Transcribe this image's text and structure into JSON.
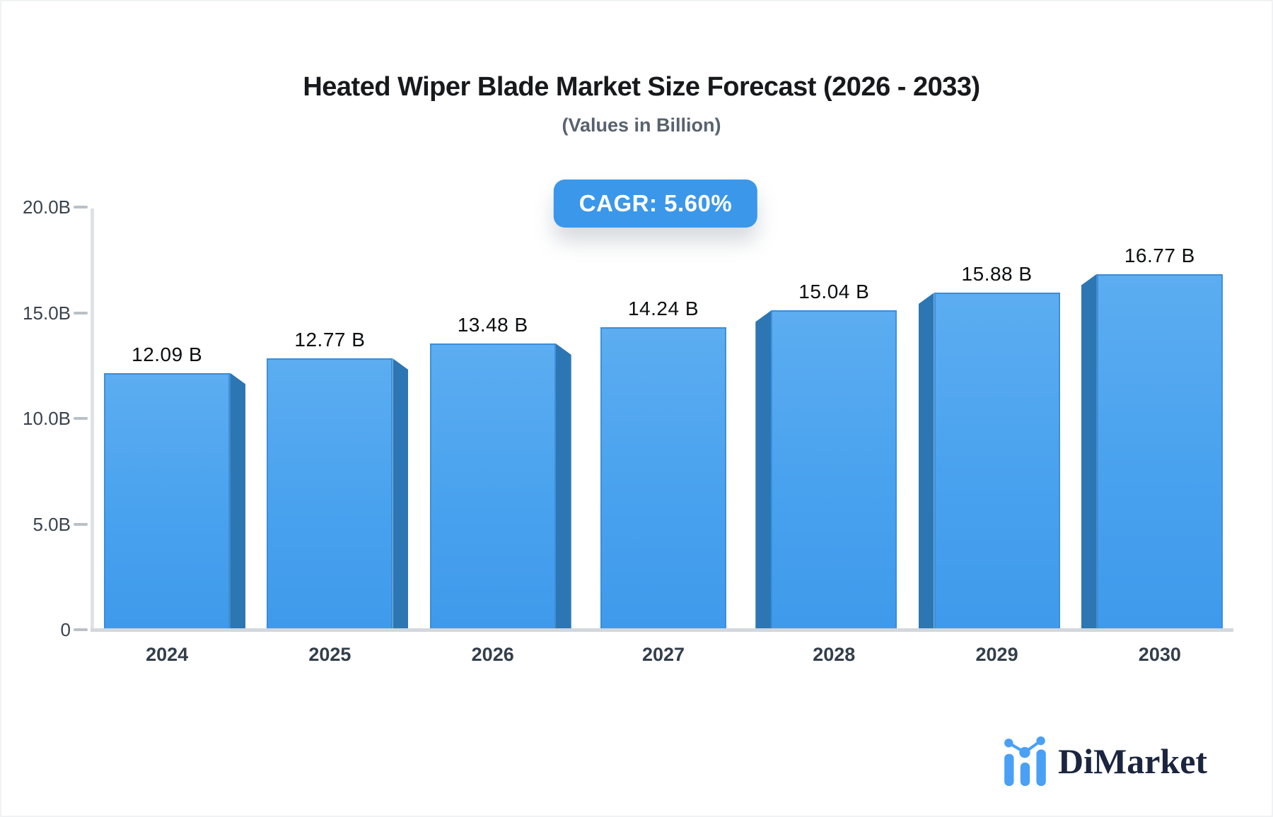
{
  "header": {
    "title": "Heated Wiper Blade Market Size Forecast (2026 - 2033)",
    "subtitle": "(Values in Billion)"
  },
  "badge": {
    "label": "CAGR: 5.60%",
    "background": "#3b97ea",
    "text_color": "#ffffff"
  },
  "chart_data": {
    "type": "bar",
    "title": "Heated Wiper Blade Market Size Forecast (2026 - 2033)",
    "subtitle": "(Values in Billion)",
    "categories": [
      "2024",
      "2025",
      "2026",
      "2027",
      "2028",
      "2029",
      "2030"
    ],
    "values": [
      12.09,
      12.77,
      13.48,
      14.24,
      15.04,
      15.88,
      16.77
    ],
    "value_labels": [
      "12.09 B",
      "12.77 B",
      "13.48 B",
      "14.24 B",
      "15.04 B",
      "15.88 B",
      "16.77 B"
    ],
    "ylim": [
      0,
      20
    ],
    "yticks": [
      {
        "value": 0,
        "label": "0"
      },
      {
        "value": 5,
        "label": "5.0B"
      },
      {
        "value": 10,
        "label": "10.0B"
      },
      {
        "value": 15,
        "label": "15.0B"
      },
      {
        "value": 20,
        "label": "20.0B"
      }
    ],
    "grid": false,
    "legend": false,
    "colors": {
      "bar_top": "#5cadf1",
      "bar_bottom": "#3f9aec",
      "bar_side": "#2d76b4",
      "bar_border": "#3e92dd",
      "axis_line": "#dfe2e6",
      "baseline": "#d3d8dd",
      "tick": "#b9c0c8",
      "tick_label_color": "#39424e",
      "value_label_color": "#0c0e10"
    }
  },
  "logo": {
    "name": "DiMarket",
    "icon": "bar-chart-trend-icon",
    "icon_color": "#4aa0f4",
    "text_color": "#1b2540"
  }
}
